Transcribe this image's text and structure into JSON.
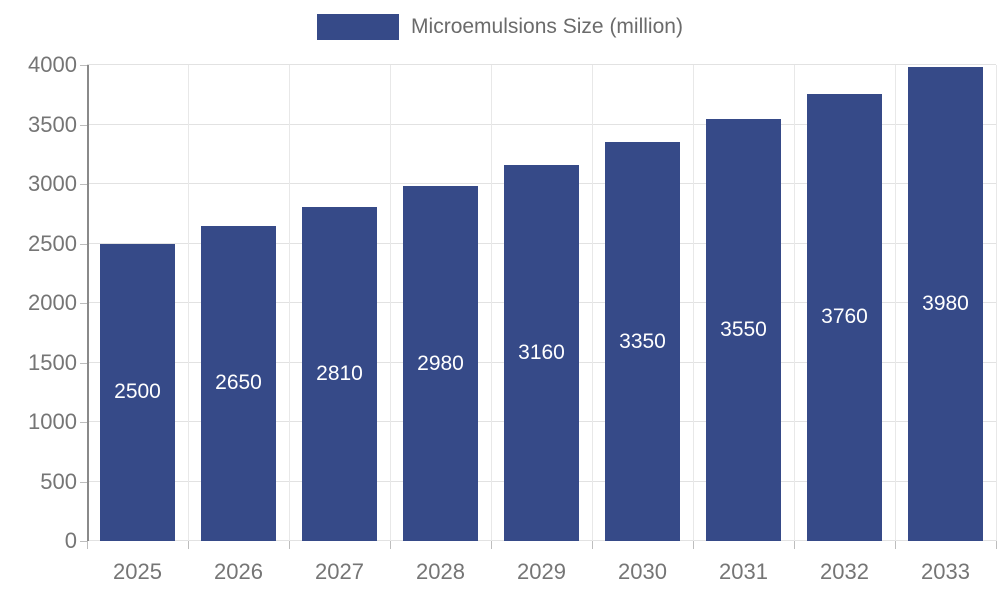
{
  "colors": {
    "bar": "#364a88",
    "grid": "#e2e2e2",
    "axis": "#8a8a8a",
    "tick": "#bdbdbd",
    "axis_text": "#757575",
    "legend_text": "#6b6b6b",
    "value_label_text": "#ffffff",
    "background": "#ffffff"
  },
  "legend": {
    "label": "Microemulsions Size (million)",
    "swatch_color": "#364a88"
  },
  "chart_data": {
    "type": "bar",
    "title": "",
    "categories": [
      "2025",
      "2026",
      "2027",
      "2028",
      "2029",
      "2030",
      "2031",
      "2032",
      "2033"
    ],
    "series": [
      {
        "name": "Microemulsions Size (million)",
        "values": [
          2500,
          2650,
          2810,
          2980,
          3160,
          3350,
          3550,
          3760,
          3980
        ],
        "color": "#364a88"
      }
    ],
    "value_labels": [
      2500,
      2650,
      2810,
      2980,
      3160,
      3350,
      3550,
      3760,
      3980
    ],
    "value_label_position": "center-of-bar",
    "xlabel": "",
    "ylabel": "",
    "ylim": [
      0,
      4000
    ],
    "yticks": [
      0,
      500,
      1000,
      1500,
      2000,
      2500,
      3000,
      3500,
      4000
    ],
    "grid": true,
    "legend_position": "top-center"
  }
}
